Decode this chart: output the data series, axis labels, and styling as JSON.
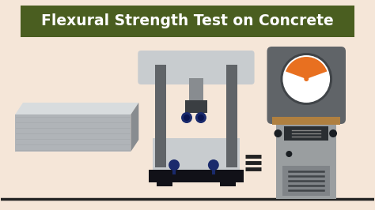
{
  "title": "Flexural Strength Test on Concrete",
  "bg_color": "#f5e6d8",
  "title_bg": "#4a5e20",
  "title_text_color": "#ffffff",
  "machine_gray_light": "#c8cccf",
  "machine_gray_mid": "#a8acaf",
  "machine_gray_dark": "#606468",
  "machine_black": "#111118",
  "machine_blue": "#1a2a6c",
  "beam_front": "#b0b4b8",
  "beam_top": "#d8dcde",
  "beam_side": "#888c90",
  "gauge_orange": "#e87020",
  "gauge_rim": "#505458",
  "wood_color": "#b08040",
  "pipe_color": "#222222",
  "floor_color": "#222222",
  "cabinet_color": "#9a9ea0",
  "bot_box_color": "#808488"
}
